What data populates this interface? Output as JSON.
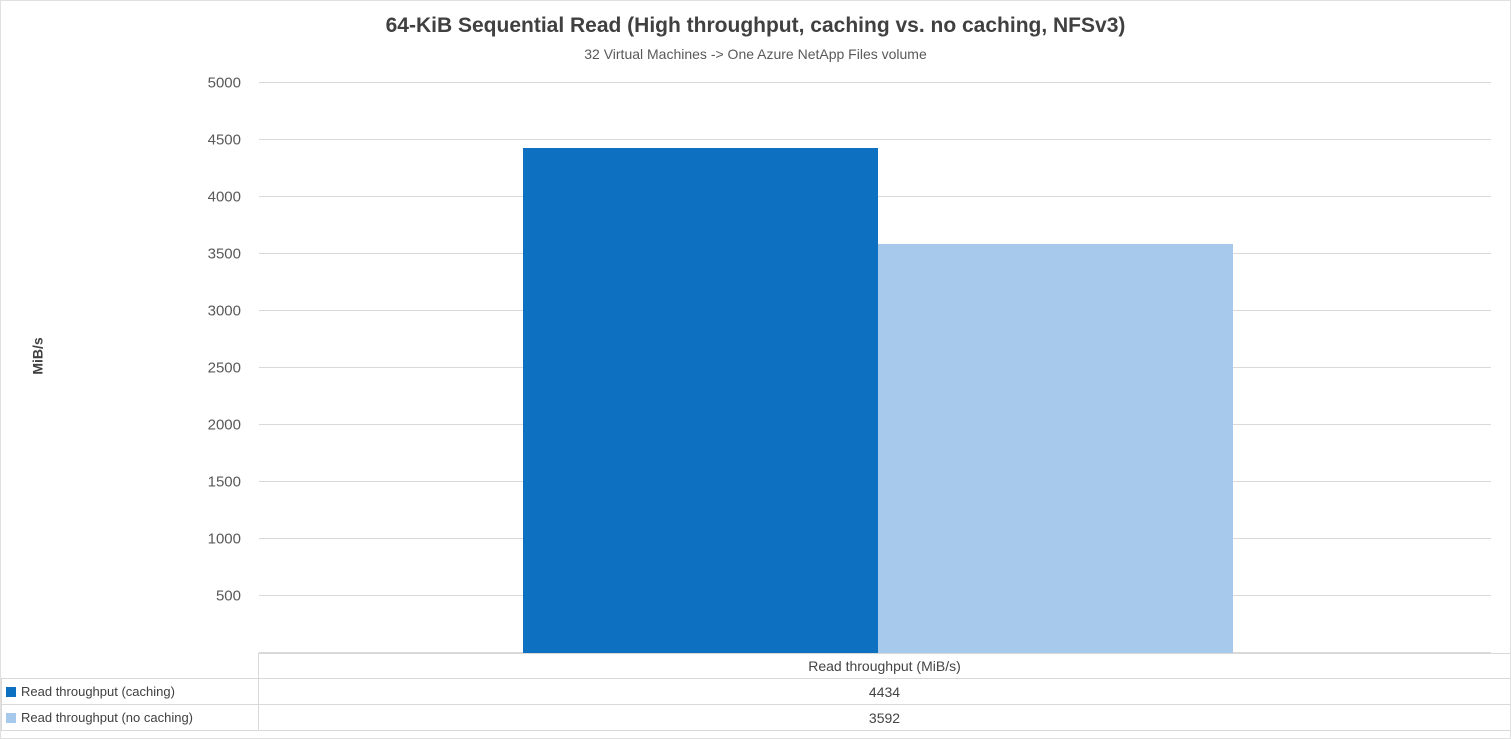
{
  "chart_data": {
    "type": "bar",
    "title": "64-KiB Sequential Read (High throughput, caching vs. no caching, NFSv3)",
    "subtitle": "32 Virtual Machines -> One Azure NetApp Files volume",
    "ylabel": "MiB/s",
    "xlabel": "",
    "ylim": [
      0,
      5000
    ],
    "ytick_step": 500,
    "yticks": [
      500,
      1000,
      1500,
      2000,
      2500,
      3000,
      3500,
      4000,
      4500,
      5000
    ],
    "grid": true,
    "legend_position": "table-left",
    "categories": [
      "Read throughput (MiB/s)"
    ],
    "series": [
      {
        "name": "Read throughput (caching)",
        "values": [
          4434
        ],
        "color": "#0e70c1"
      },
      {
        "name": "Read throughput (no caching)",
        "values": [
          3592
        ],
        "color": "#a6c9ec"
      }
    ]
  },
  "table": {
    "header": "Read throughput (MiB/s)",
    "rows": [
      {
        "label": "Read throughput (caching)",
        "value": "4434"
      },
      {
        "label": "Read throughput (no caching)",
        "value": "3592"
      }
    ]
  }
}
